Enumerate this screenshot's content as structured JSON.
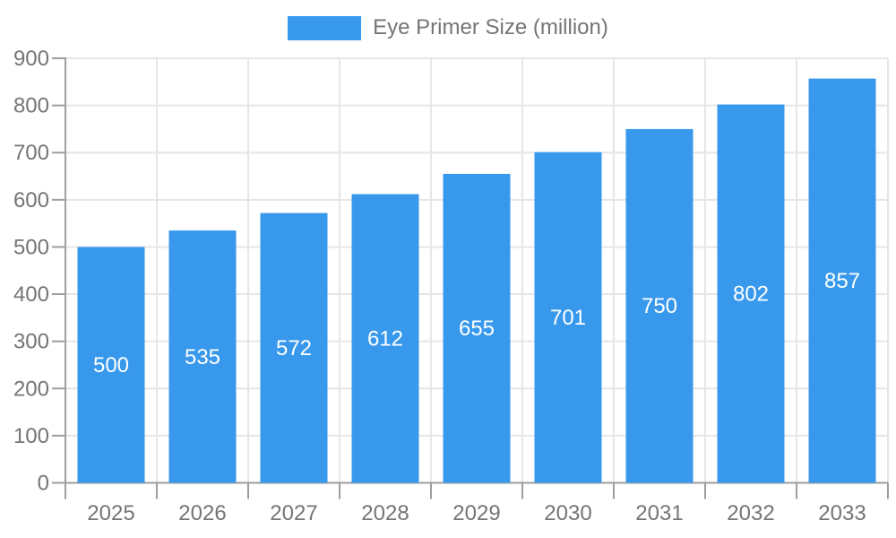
{
  "chart_data": {
    "type": "bar",
    "title": "",
    "legend": "Eye Primer Size (million)",
    "legend_position": "top",
    "categories": [
      "2025",
      "2026",
      "2027",
      "2028",
      "2029",
      "2030",
      "2031",
      "2032",
      "2033"
    ],
    "series": [
      {
        "name": "Eye Primer Size (million)",
        "values": [
          500,
          535,
          572,
          612,
          655,
          701,
          750,
          802,
          857
        ]
      }
    ],
    "value_labels": [
      "500",
      "535",
      "572",
      "612",
      "655",
      "701",
      "750",
      "802",
      "857"
    ],
    "xlabel": "",
    "ylabel": "",
    "ylim": [
      0,
      900
    ],
    "ytick_step": 100,
    "yticks": [
      0,
      100,
      200,
      300,
      400,
      500,
      600,
      700,
      800,
      900
    ],
    "grid": "both",
    "colors": {
      "bar": "#3899EC",
      "axis": "#9E9E9E",
      "grid": "#E6E6E6",
      "tick_label": "#757575",
      "value_label": "#FFFFFF",
      "background": "#FFFFFF"
    }
  }
}
